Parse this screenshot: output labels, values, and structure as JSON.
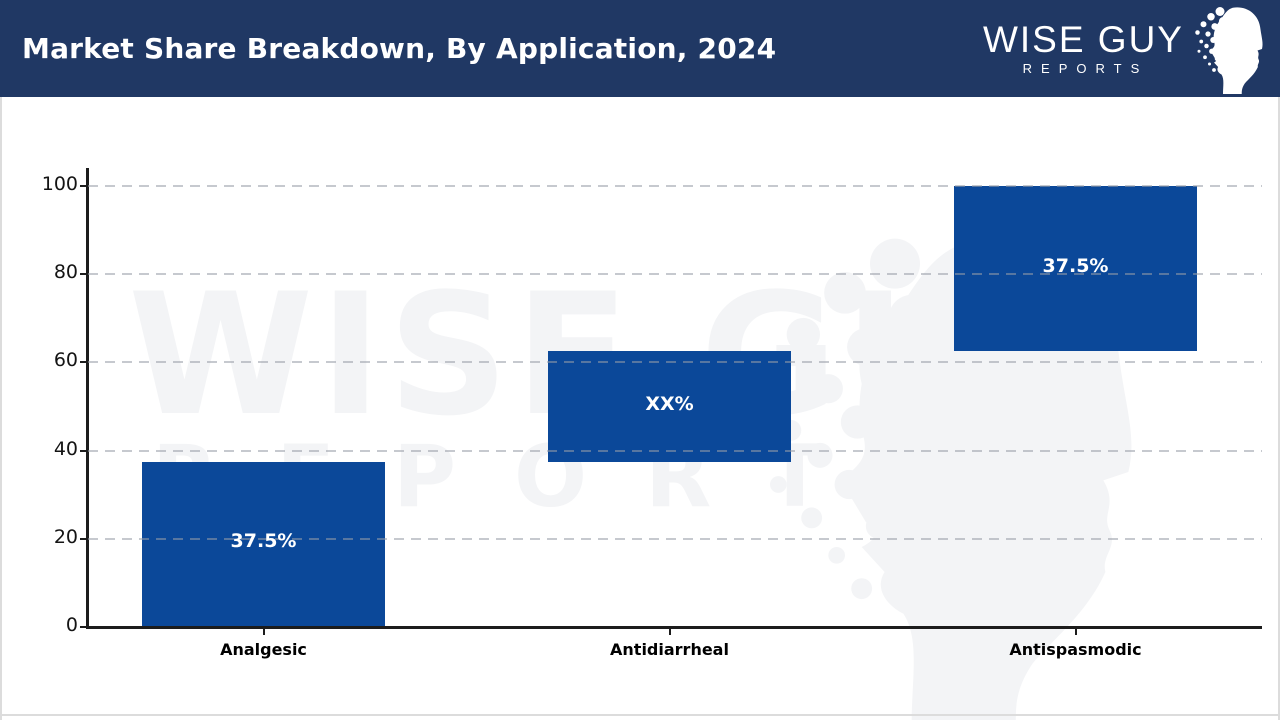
{
  "header": {
    "title": "Market Share Breakdown, By Application, 2024",
    "brand": {
      "name": "WISE GUY",
      "sub": "REPORTS"
    }
  },
  "watermark": {
    "line1": "WISE GUY",
    "line2": "REPORTS"
  },
  "colors": {
    "header_bg": "#203864",
    "bar": "#0b4899",
    "grid": "#d9d9d9",
    "axis": "#1c1c1c",
    "watermark": "#f3f4f6",
    "title_text": "#ffffff",
    "bar_label_text": "#ffffff"
  },
  "chart_data": {
    "type": "bar",
    "subtype": "floating-segment-waterfall",
    "title": "Market Share Breakdown, By Application, 2024",
    "categories": [
      "Analgesic",
      "Antidiarrheal",
      "Antispasmodic"
    ],
    "bars": [
      {
        "category": "Analgesic",
        "start": 0,
        "end": 37.5,
        "label": "37.5%"
      },
      {
        "category": "Antidiarrheal",
        "start": 37.5,
        "end": 62.5,
        "label": "XX%"
      },
      {
        "category": "Antispasmodic",
        "start": 62.5,
        "end": 100,
        "label": "37.5%"
      }
    ],
    "xlabel": "",
    "ylabel": "",
    "ylim": [
      0,
      104
    ],
    "yticks": [
      0,
      20,
      40,
      60,
      80,
      100
    ],
    "grid": "horizontal-dashed-over-bars",
    "legend": "none",
    "bar_color": "#0b4899"
  }
}
